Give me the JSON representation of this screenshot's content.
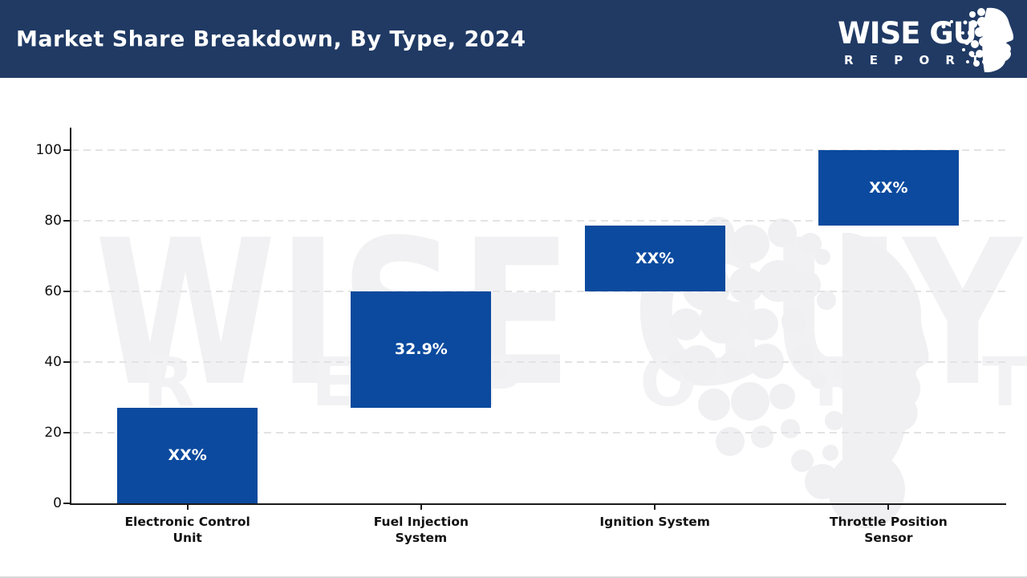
{
  "header": {
    "title": "Market Share Breakdown, By Type, 2024",
    "bg_color": "#203a64",
    "logo": {
      "line1": "WISE GUY",
      "line2": "R E P O R T S"
    }
  },
  "watermark": {
    "line1": "WISE GUY",
    "line2": "R E P O R T S"
  },
  "chart_data": {
    "type": "bar",
    "subtype": "waterfall-floating-bars",
    "title": "Market Share Breakdown, By Type, 2024",
    "categories": [
      "Electronic Control\nUnit",
      "Fuel Injection\nSystem",
      "Ignition System",
      "Throttle Position\nSensor"
    ],
    "segments": [
      {
        "label": "XX%",
        "start": 0,
        "end": 27.1
      },
      {
        "label": "32.9%",
        "start": 27.1,
        "end": 60
      },
      {
        "label": "XX%",
        "start": 60,
        "end": 78.6
      },
      {
        "label": "XX%",
        "start": 78.6,
        "end": 100
      }
    ],
    "yticks": [
      0,
      20,
      40,
      60,
      80,
      100
    ],
    "ylim": [
      0,
      100
    ],
    "xlabel": "",
    "ylabel": "",
    "grid": "horizontal-dashed",
    "legend": "none",
    "bar_color": "#0b4a9e",
    "bar_label_color": "#ffffff",
    "axis_color": "#1a1a1a"
  }
}
